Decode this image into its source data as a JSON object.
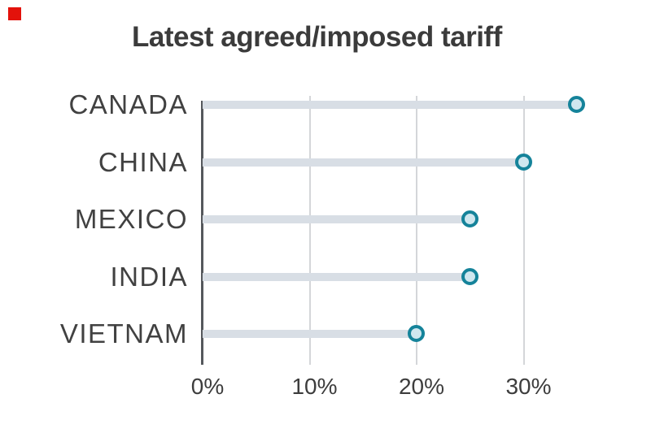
{
  "brand": {
    "mark": "red-square"
  },
  "chart_data": {
    "type": "lollipop",
    "title": "Latest agreed/imposed tariff",
    "categories": [
      "CANADA",
      "CHINA",
      "MEXICO",
      "INDIA",
      "VIETNAM"
    ],
    "values": [
      35,
      30,
      25,
      25,
      20
    ],
    "unit": "%",
    "xlabel": "",
    "ylabel": "",
    "x_ticks": [
      "0%",
      "10%",
      "20%",
      "30%"
    ],
    "x_tick_values": [
      0,
      10,
      20,
      30
    ],
    "xlim": [
      0,
      37
    ],
    "grid": "vertical-light",
    "legend": "none",
    "colors": {
      "title_text": "#3b3b3b",
      "label_text": "#414141",
      "tick_text": "#3d3d3d",
      "bar": "#d8dee5",
      "dot_fill": "#cfe7ef",
      "dot_stroke": "#15839a",
      "gridline": "#d4d6d9",
      "axis": "#55585c",
      "brand_red": "#e3120b",
      "background": "#ffffff"
    }
  }
}
